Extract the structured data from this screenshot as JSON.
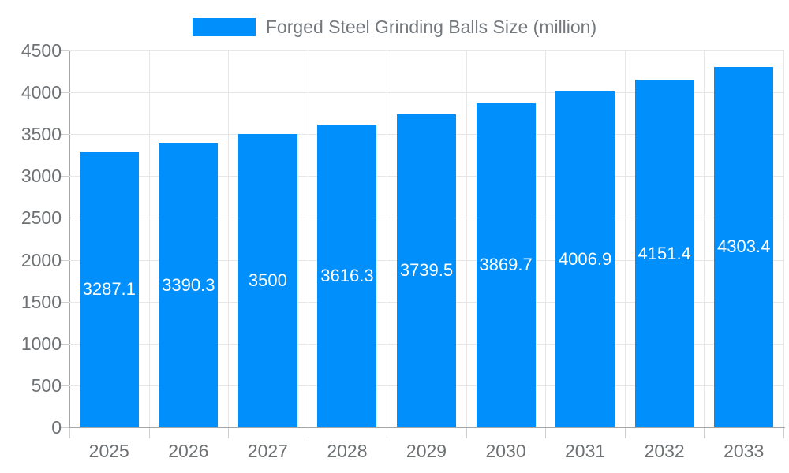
{
  "chart_data": {
    "type": "bar",
    "title": "Forged Steel Grinding Balls Size (million)",
    "legend_entries": [
      "Forged Steel Grinding Balls Size (million)"
    ],
    "legend_position": "top",
    "categories": [
      "2025",
      "2026",
      "2027",
      "2028",
      "2029",
      "2030",
      "2031",
      "2032",
      "2033"
    ],
    "series": [
      {
        "name": "Forged Steel Grinding Balls Size (million)",
        "values": [
          3287.1,
          3390.3,
          3500,
          3616.3,
          3739.5,
          3869.7,
          4006.9,
          4151.4,
          4303.4
        ]
      }
    ],
    "data_labels": [
      "3287.1",
      "3390.3",
      "3500",
      "3616.3",
      "3739.5",
      "3869.7",
      "4006.9",
      "4151.4",
      "4303.4"
    ],
    "xlabel": "",
    "ylabel": "",
    "ylim": [
      0,
      4500
    ],
    "ytick_step": 500,
    "ytick_labels": [
      "0",
      "500",
      "1000",
      "1500",
      "2000",
      "2500",
      "3000",
      "3500",
      "4000",
      "4500"
    ],
    "grid": true,
    "colors": {
      "bar": "#008FFB",
      "grid": "#e7e7e7",
      "axis": "#a6a6a6",
      "tick": "#cfcfcf",
      "axis_text": "#6e7173",
      "legend_text": "#73787c",
      "data_label_text": "#ffffff",
      "background": "#ffffff"
    }
  }
}
